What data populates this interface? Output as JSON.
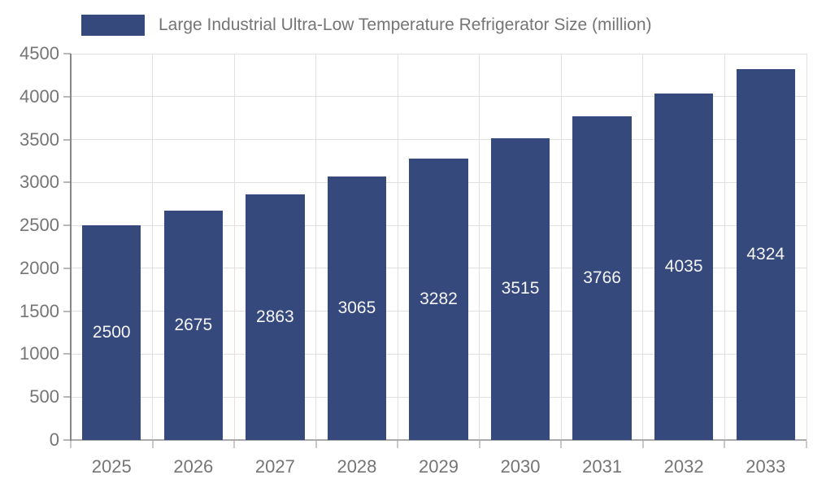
{
  "legend": {
    "label": "Large Industrial Ultra-Low Temperature Refrigerator Size (million)"
  },
  "chart_data": {
    "type": "bar",
    "title": "Large Industrial Ultra-Low Temperature Refrigerator Size (million)",
    "categories": [
      "2025",
      "2026",
      "2027",
      "2028",
      "2029",
      "2030",
      "2031",
      "2032",
      "2033"
    ],
    "values": [
      2500,
      2675,
      2863,
      3065,
      3282,
      3515,
      3766,
      4035,
      4324
    ],
    "value_labels": [
      "2500",
      "2675",
      "2863",
      "3065",
      "3282",
      "3515",
      "3766",
      "4035",
      "4324"
    ],
    "yticks": [
      0,
      500,
      1000,
      1500,
      2000,
      2500,
      3000,
      3500,
      4000,
      4500
    ],
    "ylim": [
      0,
      4500
    ],
    "xlabel": "",
    "ylabel": "",
    "grid": true,
    "legend_position": "top-left",
    "colors": {
      "bar": "#36497D",
      "value_label": "#f5f5f5",
      "axis_label": "#757575",
      "legend_text": "#757575",
      "gridline": "#e0e0e0"
    }
  }
}
